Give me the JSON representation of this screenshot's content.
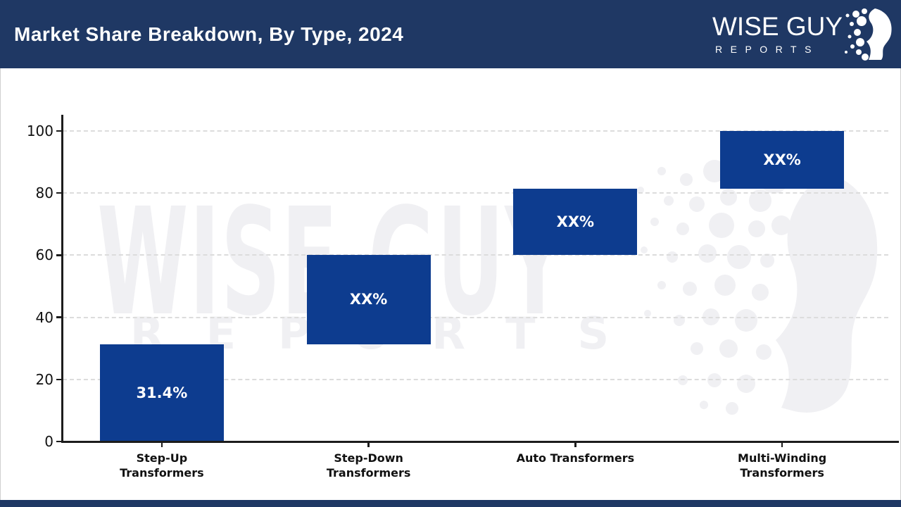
{
  "header": {
    "title": "Market Share Breakdown, By Type, 2024",
    "logo": {
      "line1": "WISE GUY",
      "line2": "REPORTS"
    }
  },
  "watermark": {
    "line1": "WISE GUY",
    "line2": "REPORTS"
  },
  "chart_data": {
    "type": "bar",
    "subtype": "waterfall",
    "title": "Market Share Breakdown, By Type, 2024",
    "categories": [
      "Step-Up Transformers",
      "Step-Down Transformers",
      "Auto Transformers",
      "Multi-Winding Transformers"
    ],
    "category_lines": [
      [
        "Step-Up",
        "Transformers"
      ],
      [
        "Step-Down",
        "Transformers"
      ],
      [
        "Auto Transformers"
      ],
      [
        "Multi-Winding",
        "Transformers"
      ]
    ],
    "segments": [
      {
        "label": "31.4%",
        "start": 0,
        "end": 31.4
      },
      {
        "label": "XX%",
        "start": 31.4,
        "end": 60
      },
      {
        "label": "XX%",
        "start": 60,
        "end": 81.4
      },
      {
        "label": "XX%",
        "start": 81.4,
        "end": 100
      }
    ],
    "xlabel": "",
    "ylabel": "",
    "ylim": [
      0,
      100
    ],
    "yticks": [
      0,
      20,
      40,
      60,
      80,
      100
    ],
    "grid": "horizontal-dashed",
    "legend": "none",
    "bar_color": "#0d3c8f",
    "bar_label_color": "#ffffff"
  },
  "colors": {
    "header_navy": "#1f3864",
    "footer_navy": "#1f3864",
    "bar_blue": "#0d3c8f",
    "watermark_gray": "#f0f0f3",
    "gridline_gray": "#dcdcdc",
    "axis_black": "#1c1c1c",
    "text_dark": "#111111"
  }
}
